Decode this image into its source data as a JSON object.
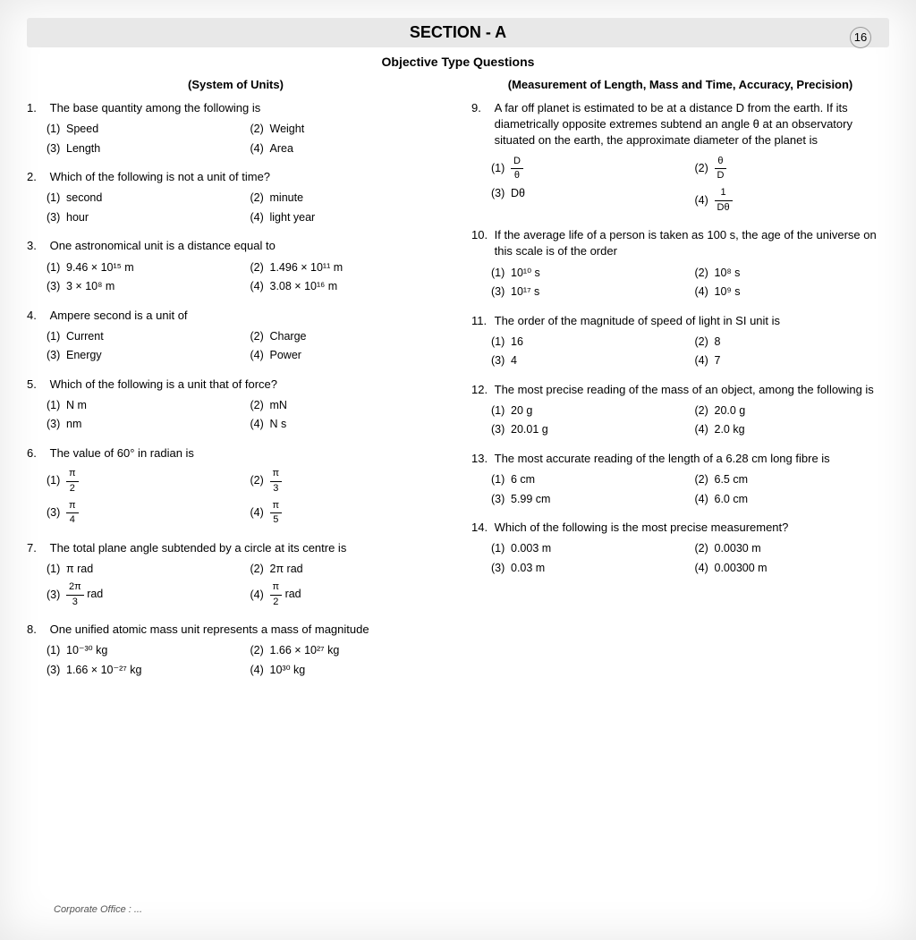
{
  "page_number": "16",
  "section_title": "SECTION - A",
  "section_subtitle": "Objective Type Questions",
  "left_column": {
    "heading": "(System of Units)",
    "questions": [
      {
        "num": "1.",
        "text": "The base quantity among the following is",
        "options": [
          "Speed",
          "Weight",
          "Length",
          "Area"
        ]
      },
      {
        "num": "2.",
        "text": "Which of the following is not a unit of time?",
        "options": [
          "second",
          "minute",
          "hour",
          "light year"
        ]
      },
      {
        "num": "3.",
        "text": "One astronomical unit is a distance equal to",
        "options": [
          "9.46 × 10¹⁵ m",
          "1.496 × 10¹¹ m",
          "3 × 10⁸ m",
          "3.08 × 10¹⁶ m"
        ]
      },
      {
        "num": "4.",
        "text": "Ampere second is a unit of",
        "options": [
          "Current",
          "Charge",
          "Energy",
          "Power"
        ]
      },
      {
        "num": "5.",
        "text": "Which of the following is a unit that of force?",
        "options": [
          "N m",
          "mN",
          "nm",
          "N s"
        ]
      },
      {
        "num": "6.",
        "text": "The value of 60° in radian is",
        "options": [
          "π/2",
          "π/3",
          "π/4",
          "π/5"
        ]
      },
      {
        "num": "7.",
        "text": "The total plane angle subtended by a circle at its centre is",
        "options": [
          "π rad",
          "2π rad",
          "2π/3 rad",
          "π/2 rad"
        ]
      },
      {
        "num": "8.",
        "text": "One unified atomic mass unit represents a mass of magnitude",
        "options": [
          "10⁻³⁰ kg",
          "1.66 × 10²⁷ kg",
          "1.66 × 10⁻²⁷ kg",
          "10³⁰ kg"
        ]
      }
    ]
  },
  "right_column": {
    "heading": "(Measurement of Length, Mass and Time, Accuracy, Precision)",
    "questions": [
      {
        "num": "9.",
        "text": "A far off planet is estimated to be at a distance D from the earth. If its diametrically opposite extremes subtend an angle θ at an observatory situated on the earth, the approximate diameter of the planet is",
        "options": [
          "D/θ",
          "θ/D",
          "Dθ",
          "1/Dθ"
        ]
      },
      {
        "num": "10.",
        "text": "If the average life of a person is taken as 100 s, the age of the universe on this scale is of the order",
        "options": [
          "10¹⁰ s",
          "10⁸ s",
          "10¹⁷ s",
          "10⁹ s"
        ]
      },
      {
        "num": "11.",
        "text": "The order of the magnitude of speed of light in SI unit is",
        "options": [
          "16",
          "8",
          "4",
          "7"
        ]
      },
      {
        "num": "12.",
        "text": "The most precise reading of the mass of an object, among the following is",
        "options": [
          "20 g",
          "20.0 g",
          "20.01 g",
          "2.0 kg"
        ]
      },
      {
        "num": "13.",
        "text": "The most accurate reading of the length of a 6.28 cm long fibre is",
        "options": [
          "6 cm",
          "6.5 cm",
          "5.99 cm",
          "6.0 cm"
        ]
      },
      {
        "num": "14.",
        "text": "Which of the following is the most precise measurement?",
        "options": [
          "0.003 m",
          "0.0030 m",
          "0.03 m",
          "0.00300 m"
        ]
      }
    ]
  },
  "footer": "Corporate Office : ...",
  "colors": {
    "page_bg": "#ffffff",
    "header_bg": "#e8e8e8",
    "text": "#1a1a1a"
  },
  "fonts": {
    "body_size": 13,
    "header_size": 18
  }
}
